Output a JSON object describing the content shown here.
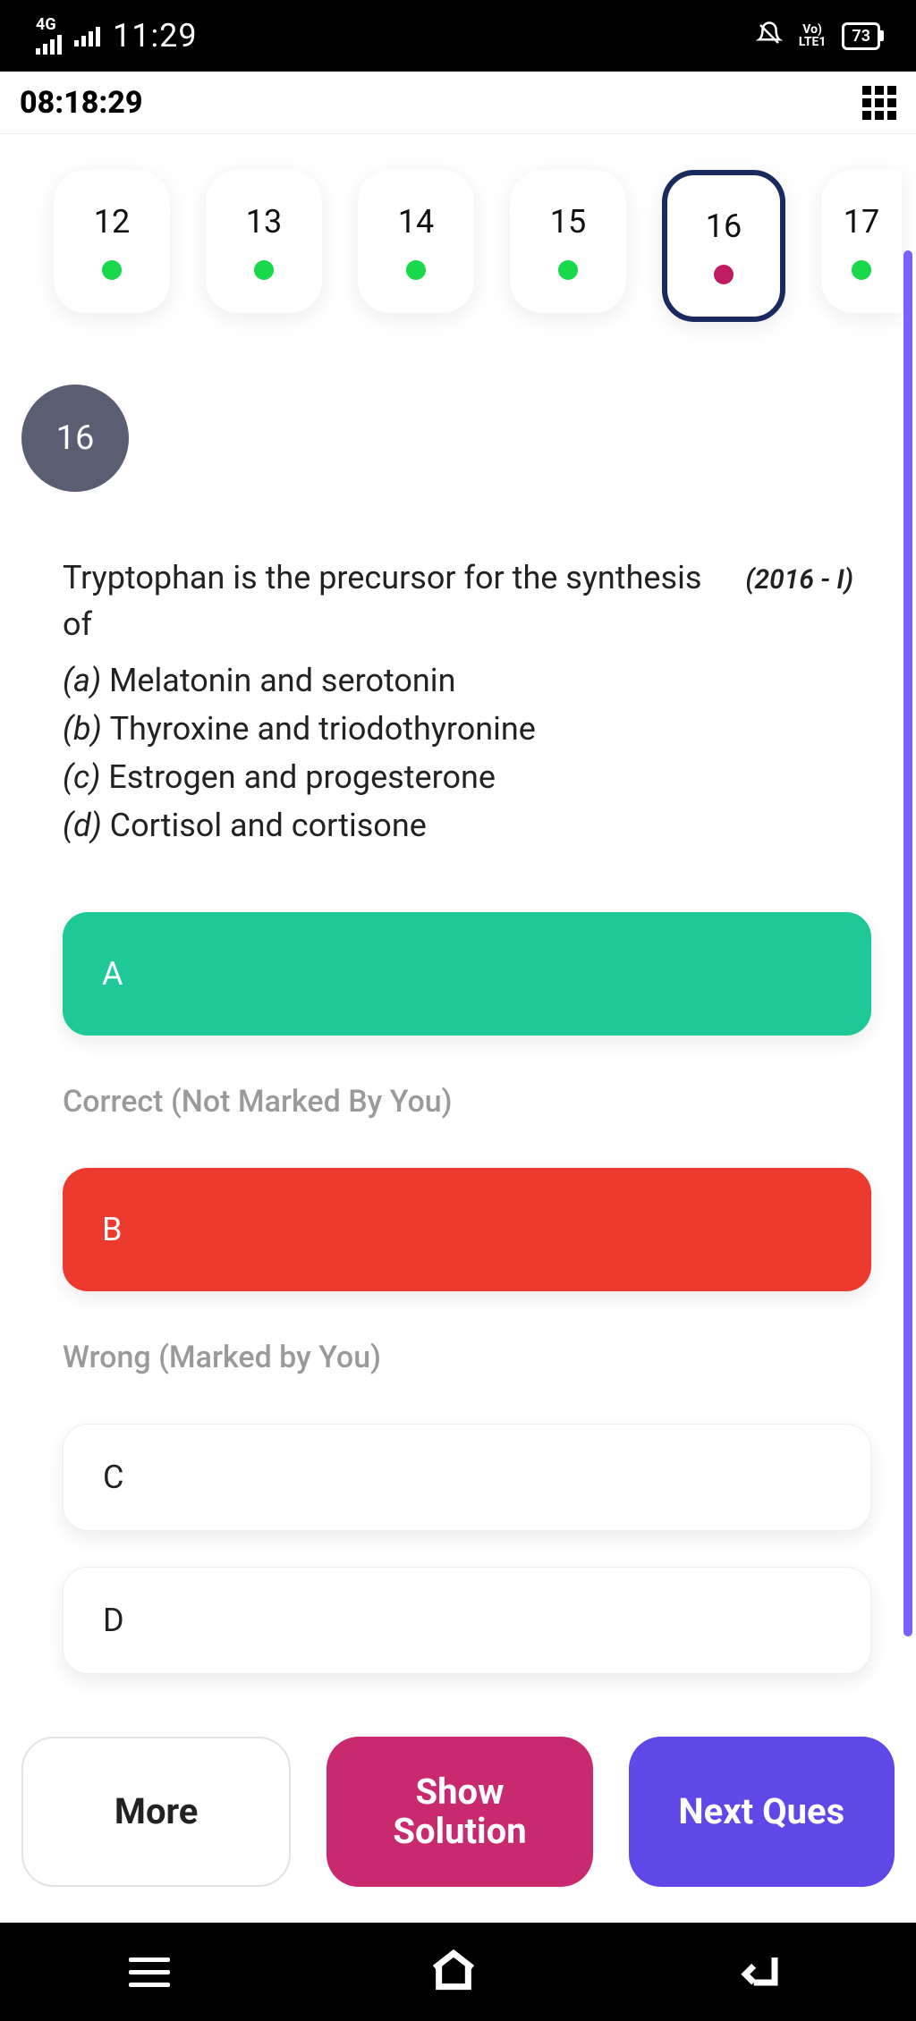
{
  "statusbar": {
    "network_label": "4G",
    "time": "11:29",
    "lte_top": "Vo)",
    "lte_bottom": "LTE1",
    "battery": "73"
  },
  "header": {
    "timer": "08:18:29"
  },
  "pills": [
    {
      "num": "12",
      "dot_color": "#19d84a",
      "current": false
    },
    {
      "num": "13",
      "dot_color": "#19d84a",
      "current": false
    },
    {
      "num": "14",
      "dot_color": "#19d84a",
      "current": false
    },
    {
      "num": "15",
      "dot_color": "#19d84a",
      "current": false
    },
    {
      "num": "16",
      "dot_color": "#c11b63",
      "current": true
    },
    {
      "num": "17",
      "dot_color": "#19d84a",
      "current": false
    }
  ],
  "question": {
    "number": "16",
    "stem": "Tryptophan is the precursor for the synthesis of",
    "year": "(2016 - I)",
    "opts": [
      {
        "label": "(a)",
        "text": "Melatonin and serotonin"
      },
      {
        "label": "(b)",
        "text": "Thyroxine and triodothyronine"
      },
      {
        "label": "(c)",
        "text": "Estrogen and progesterone"
      },
      {
        "label": "(d)",
        "text": "Cortisol and cortisone"
      }
    ]
  },
  "answers": {
    "a": {
      "letter": "A",
      "status": "Correct (Not Marked By You)"
    },
    "b": {
      "letter": "B",
      "status": "Wrong (Marked by You)"
    },
    "c": {
      "letter": "C"
    },
    "d": {
      "letter": "D"
    }
  },
  "colors": {
    "correct_bg": "#1ec997",
    "wrong_bg": "#ec3b2e",
    "scroll": "#7b61ff",
    "badge": "#5b5d72",
    "pill_border": "#1a2a5e",
    "show_btn": "#c9296e",
    "next_btn": "#6048e8"
  },
  "actions": {
    "more": "More",
    "show_line1": "Show",
    "show_line2": "Solution",
    "next": "Next Ques"
  }
}
